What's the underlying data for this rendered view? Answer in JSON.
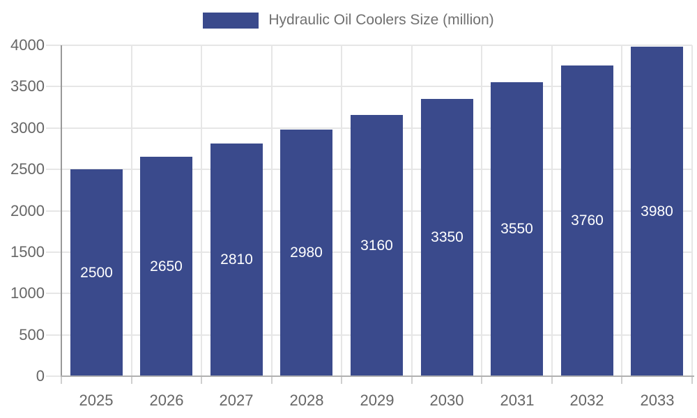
{
  "legend": {
    "label": "Hydraulic Oil Coolers Size (million)"
  },
  "chart_data": {
    "type": "bar",
    "title": "Hydraulic Oil Coolers Size (million)",
    "legend_entries": [
      "Hydraulic Oil Coolers Size (million)"
    ],
    "legend_position": "top",
    "categories": [
      "2025",
      "2026",
      "2027",
      "2028",
      "2029",
      "2030",
      "2031",
      "2032",
      "2033"
    ],
    "series": [
      {
        "name": "Hydraulic Oil Coolers Size (million)",
        "values": [
          2500,
          2650,
          2810,
          2980,
          3160,
          3350,
          3550,
          3760,
          3980
        ]
      }
    ],
    "data_labels": [
      "2500",
      "2650",
      "2810",
      "2980",
      "3160",
      "3350",
      "3550",
      "3760",
      "3980"
    ],
    "xlabel": "",
    "ylabel": "",
    "ylim": [
      0,
      4000
    ],
    "ytick_interval": 500,
    "ytick_labels": [
      "0",
      "500",
      "1000",
      "1500",
      "2000",
      "2500",
      "3000",
      "3500",
      "4000"
    ],
    "grid": true,
    "colors": {
      "bar": "#3A4A8C",
      "bar_label": "#FFFFFF",
      "axis_text": "#666666",
      "legend_text": "#707070",
      "gridline": "#E6E6E6",
      "y_axis_line": "#999999",
      "x_axis_line": "#B0B0B0",
      "tick": "#CFCFCF",
      "background": "#FFFFFF"
    }
  }
}
